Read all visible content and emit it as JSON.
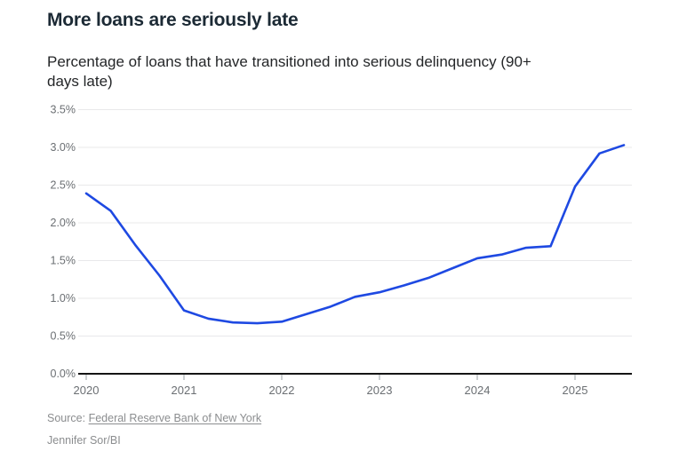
{
  "header": {
    "title": "More loans are seriously late",
    "subtitle_line1": "Percentage of loans that have transitioned into serious delinquency (90+",
    "subtitle_line2": "days late)"
  },
  "footer": {
    "source_label": "Source:",
    "source_link": "Federal Reserve Bank of New York",
    "byline": "Jennifer Sor/BI"
  },
  "chart_data": {
    "type": "line",
    "title": "More loans are seriously late",
    "subtitle": "Percentage of loans that have transitioned into serious delinquency (90+ days late)",
    "x_quarters": [
      "2020 Q1",
      "2020 Q2",
      "2020 Q3",
      "2020 Q4",
      "2021 Q1",
      "2021 Q2",
      "2021 Q3",
      "2021 Q4",
      "2022 Q1",
      "2022 Q2",
      "2022 Q3",
      "2022 Q4",
      "2023 Q1",
      "2023 Q2",
      "2023 Q3",
      "2023 Q4",
      "2024 Q1",
      "2024 Q2",
      "2024 Q3",
      "2024 Q4",
      "2025 Q1",
      "2025 Q2",
      "2025 Q3"
    ],
    "series": [
      {
        "name": "Serious delinquency transition rate (%)",
        "values": [
          2.39,
          2.16,
          1.71,
          1.3,
          0.84,
          0.73,
          0.68,
          0.67,
          0.69,
          0.79,
          0.89,
          1.02,
          1.08,
          1.17,
          1.27,
          1.4,
          1.53,
          1.58,
          1.67,
          1.69,
          2.48,
          2.92,
          3.03
        ]
      }
    ],
    "x_tick_labels": [
      "2020",
      "2021",
      "2022",
      "2023",
      "2024",
      "2025"
    ],
    "y_tick_labels": [
      "0.0%",
      "0.5%",
      "1.0%",
      "1.5%",
      "2.0%",
      "2.5%",
      "3.0%",
      "3.5%"
    ],
    "ylim": [
      0,
      3.5
    ],
    "y_step": 0.5,
    "grid": "horizontal",
    "legend": "none",
    "line_color": "#1e49e2",
    "axis_color": "#141414",
    "grid_color": "#e8e8ea",
    "tick_color": "#9aa0a4",
    "tick_label_color": "#6b6f73"
  }
}
